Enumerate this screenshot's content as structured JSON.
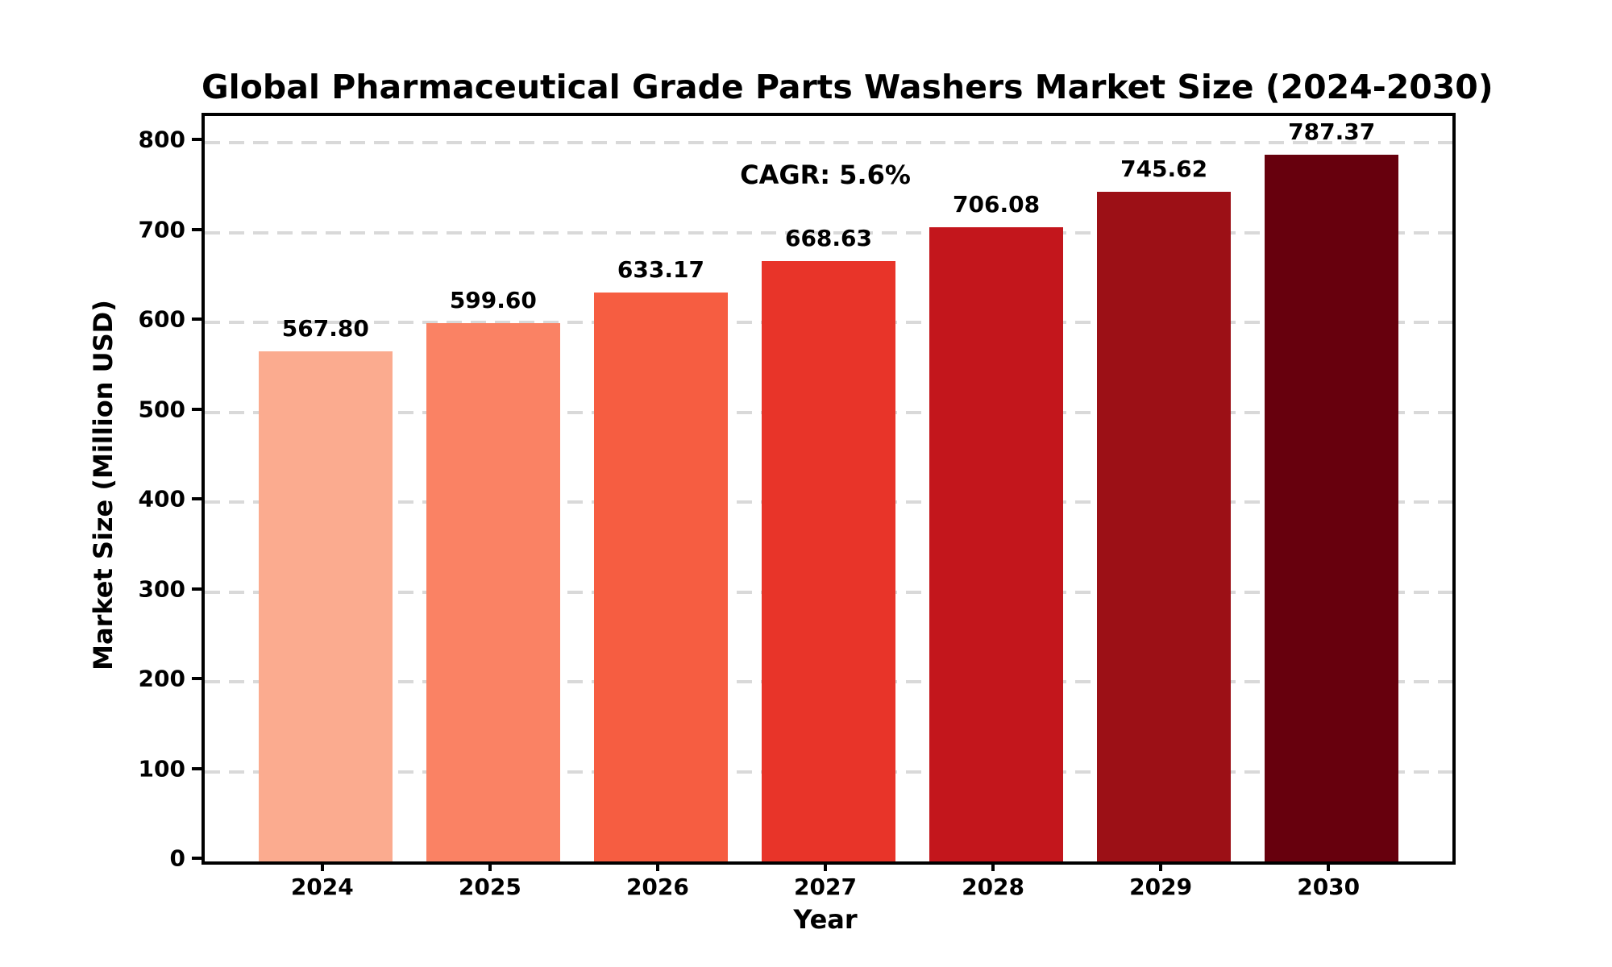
{
  "title": "Global Pharmaceutical Grade Parts Washers Market Size (2024-2030)",
  "annotation": {
    "cagr_label": "CAGR: 5.6%"
  },
  "axes": {
    "xlabel": "Year",
    "ylabel": "Market Size (Million USD)"
  },
  "chart_data": {
    "type": "bar",
    "title": "Global Pharmaceutical Grade Parts Washers Market Size (2024-2030)",
    "xlabel": "Year",
    "ylabel": "Market Size (Million USD)",
    "categories": [
      "2024",
      "2025",
      "2026",
      "2027",
      "2028",
      "2029",
      "2030"
    ],
    "values": [
      567.8,
      599.6,
      633.17,
      668.63,
      706.08,
      745.62,
      787.37
    ],
    "value_labels": [
      "567.80",
      "599.60",
      "633.17",
      "668.63",
      "706.08",
      "745.62",
      "787.37"
    ],
    "annotation": "CAGR: 5.6%",
    "ylim": [
      0,
      830
    ],
    "yticks": [
      0,
      100,
      200,
      300,
      400,
      500,
      600,
      700,
      800
    ],
    "grid": "horizontal-dashed",
    "legend": "none",
    "bar_colors": [
      "#FBAB8F",
      "#FA8264",
      "#F65D41",
      "#E83429",
      "#C3161C",
      "#9C1016",
      "#67000D"
    ],
    "colors": {
      "background": "#FFFFFF",
      "grid": "#D9D9D9",
      "spine": "#000000",
      "text": "#000000"
    }
  }
}
